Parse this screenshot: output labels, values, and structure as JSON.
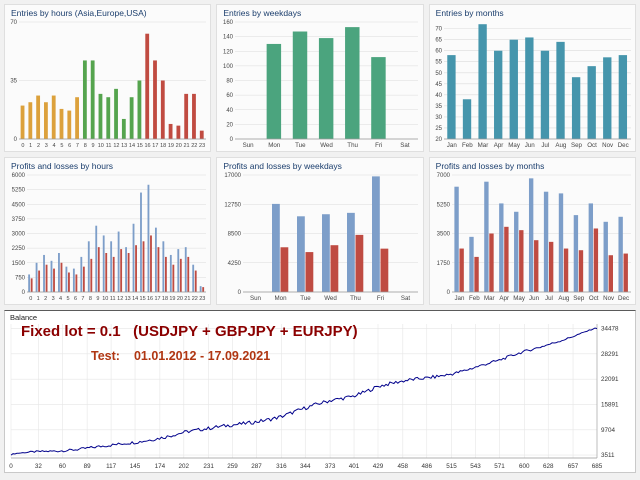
{
  "balance_overlay": {
    "line1": "Fixed lot = 0.1   (USDJPY + GBPJPY + EURJPY)",
    "line2_label": "Test:",
    "line2_value": "01.01.2012 - 17.09.2021",
    "color1": "#8B0000",
    "color2": "#B03612"
  },
  "chart_data": [
    {
      "id": "entries_by_hours",
      "type": "bar",
      "title": "Entries by hours (Asia,Europe,USA)",
      "categories": [
        "0",
        "1",
        "2",
        "3",
        "4",
        "5",
        "6",
        "7",
        "8",
        "9",
        "10",
        "11",
        "12",
        "13",
        "14",
        "15",
        "16",
        "17",
        "18",
        "19",
        "20",
        "21",
        "22",
        "23"
      ],
      "values": [
        20,
        22,
        26,
        22,
        26,
        18,
        17,
        25,
        47,
        47,
        27,
        25,
        30,
        12,
        25,
        35,
        63,
        47,
        35,
        9,
        8,
        27,
        27,
        5
      ],
      "colors": [
        "#DCA13C",
        "#DCA13C",
        "#DCA13C",
        "#DCA13C",
        "#DCA13C",
        "#DCA13C",
        "#DCA13C",
        "#DCA13C",
        "#55A44E",
        "#55A44E",
        "#55A44E",
        "#55A44E",
        "#55A44E",
        "#55A44E",
        "#55A44E",
        "#55A44E",
        "#C04B41",
        "#C04B41",
        "#C04B41",
        "#C04B41",
        "#C04B41",
        "#C04B41",
        "#C04B41",
        "#C04B41"
      ],
      "ylim": [
        0,
        70
      ],
      "yticks": [
        0,
        35,
        70
      ]
    },
    {
      "id": "entries_by_weekdays",
      "type": "bar",
      "title": "Entries by weekdays",
      "categories": [
        "Sun",
        "Mon",
        "Tue",
        "Wed",
        "Thu",
        "Fri",
        "Sat"
      ],
      "values": [
        0,
        130,
        147,
        138,
        153,
        112,
        0
      ],
      "color": "#4BA47E",
      "ylim": [
        0,
        160
      ],
      "yticks": [
        0,
        20,
        40,
        60,
        80,
        100,
        120,
        140,
        160
      ]
    },
    {
      "id": "entries_by_months",
      "type": "bar",
      "title": "Entries by months",
      "categories": [
        "Jan",
        "Feb",
        "Mar",
        "Apr",
        "May",
        "Jun",
        "Jul",
        "Aug",
        "Sep",
        "Oct",
        "Nov",
        "Dec"
      ],
      "values": [
        58,
        38,
        72,
        60,
        65,
        66,
        60,
        64,
        48,
        53,
        57,
        58
      ],
      "color": "#4595AC",
      "ylim": [
        20,
        73
      ],
      "yticks": [
        20,
        25,
        30,
        35,
        40,
        45,
        50,
        55,
        60,
        65,
        70
      ]
    },
    {
      "id": "profits_losses_by_hours",
      "type": "bar",
      "title": "Profits and losses by hours",
      "categories": [
        "0",
        "1",
        "2",
        "3",
        "4",
        "5",
        "6",
        "7",
        "8",
        "9",
        "10",
        "11",
        "12",
        "13",
        "14",
        "15",
        "16",
        "17",
        "18",
        "19",
        "20",
        "21",
        "22",
        "23"
      ],
      "series": [
        {
          "name": "profit",
          "color": "#7D9EC9",
          "values": [
            900,
            1500,
            1900,
            1600,
            2000,
            1300,
            1200,
            1800,
            2600,
            3400,
            2900,
            2600,
            3100,
            2300,
            3500,
            5100,
            5500,
            3300,
            2600,
            1900,
            2200,
            2300,
            1400,
            300
          ]
        },
        {
          "name": "loss",
          "color": "#BF4B42",
          "values": [
            700,
            1100,
            1400,
            1200,
            1500,
            1000,
            900,
            1300,
            1700,
            2300,
            2000,
            1800,
            2200,
            2000,
            2400,
            2600,
            2900,
            2300,
            1800,
            1400,
            1700,
            1800,
            1100,
            250
          ]
        }
      ],
      "ylim": [
        0,
        6000
      ],
      "yticks": [
        0,
        750,
        1500,
        2250,
        3000,
        3750,
        4500,
        5250,
        6000
      ]
    },
    {
      "id": "profits_losses_by_weekdays",
      "type": "bar",
      "title": "Profits and losses by weekdays",
      "categories": [
        "Sun",
        "Mon",
        "Tue",
        "Wed",
        "Thu",
        "Fri",
        "Sat"
      ],
      "series": [
        {
          "name": "profit",
          "color": "#7D9EC9",
          "values": [
            0,
            12800,
            11000,
            11300,
            11500,
            16800,
            0
          ]
        },
        {
          "name": "loss",
          "color": "#BF4B42",
          "values": [
            0,
            6500,
            5800,
            6800,
            8300,
            6300,
            0
          ]
        }
      ],
      "ylim": [
        0,
        17000
      ],
      "yticks": [
        0,
        4250,
        8500,
        12750,
        17000
      ]
    },
    {
      "id": "profits_losses_by_months",
      "type": "bar",
      "title": "Profits and losses by months",
      "categories": [
        "Jan",
        "Feb",
        "Mar",
        "Apr",
        "May",
        "Jun",
        "Jul",
        "Aug",
        "Sep",
        "Oct",
        "Nov",
        "Dec"
      ],
      "series": [
        {
          "name": "profit",
          "color": "#7D9EC9",
          "values": [
            6300,
            3300,
            6600,
            5300,
            4800,
            6800,
            6000,
            5900,
            4600,
            5300,
            4200,
            4500
          ]
        },
        {
          "name": "loss",
          "color": "#BF4B42",
          "values": [
            2600,
            2100,
            3500,
            3900,
            3700,
            3100,
            3000,
            2600,
            2500,
            3800,
            2200,
            2300
          ]
        }
      ],
      "ylim": [
        0,
        7000
      ],
      "yticks": [
        0,
        1750,
        3500,
        5250,
        7000
      ]
    },
    {
      "id": "balance",
      "type": "line",
      "title": "Balance",
      "color": "#00008B",
      "points": [
        [
          0,
          3511
        ],
        [
          32,
          4300
        ],
        [
          60,
          4800
        ],
        [
          89,
          5300
        ],
        [
          117,
          5700
        ],
        [
          145,
          6500
        ],
        [
          174,
          7900
        ],
        [
          202,
          9200
        ],
        [
          231,
          9800
        ],
        [
          259,
          10800
        ],
        [
          287,
          11900
        ],
        [
          316,
          13000
        ],
        [
          344,
          14800
        ],
        [
          373,
          16800
        ],
        [
          401,
          18200
        ],
        [
          429,
          20400
        ],
        [
          458,
          21400
        ],
        [
          486,
          22300
        ],
        [
          515,
          23600
        ],
        [
          543,
          25100
        ],
        [
          571,
          26500
        ],
        [
          600,
          28800
        ],
        [
          628,
          30800
        ],
        [
          657,
          32600
        ],
        [
          685,
          34478
        ]
      ],
      "xticks": [
        0,
        32,
        60,
        89,
        117,
        145,
        174,
        202,
        231,
        259,
        287,
        316,
        344,
        373,
        401,
        429,
        458,
        486,
        515,
        543,
        571,
        600,
        628,
        657,
        685
      ],
      "yticks": [
        3511,
        9704,
        15891,
        22091,
        28291,
        34478
      ],
      "xlim": [
        0,
        685
      ],
      "ylim": [
        2800,
        35600
      ]
    }
  ]
}
